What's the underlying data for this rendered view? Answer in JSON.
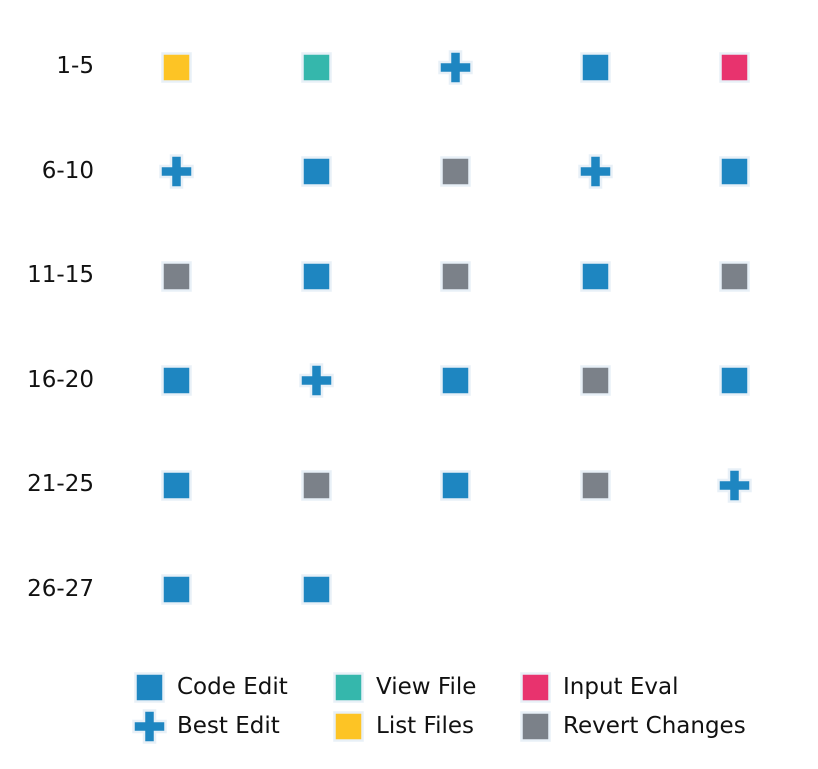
{
  "chart_data": {
    "type": "scatter",
    "description": "Grid timeline of agent actions per step; each row covers five steps, each cell is one action marker",
    "background": "#ffffff",
    "marker_halo": "#e8f0f7",
    "text_color": "#111111",
    "rows": [
      {
        "label": "1-5",
        "actions": [
          "List Files",
          "View File",
          "Best Edit",
          "Code Edit",
          "Input Eval"
        ]
      },
      {
        "label": "6-10",
        "actions": [
          "Best Edit",
          "Code Edit",
          "Revert Changes",
          "Best Edit",
          "Code Edit"
        ]
      },
      {
        "label": "11-15",
        "actions": [
          "Revert Changes",
          "Code Edit",
          "Revert Changes",
          "Code Edit",
          "Revert Changes"
        ]
      },
      {
        "label": "16-20",
        "actions": [
          "Code Edit",
          "Best Edit",
          "Code Edit",
          "Revert Changes",
          "Code Edit"
        ]
      },
      {
        "label": "21-25",
        "actions": [
          "Code Edit",
          "Revert Changes",
          "Code Edit",
          "Revert Changes",
          "Best Edit"
        ]
      },
      {
        "label": "26-27",
        "actions": [
          "Code Edit",
          "Code Edit"
        ]
      }
    ],
    "legend": [
      {
        "label": "Code Edit",
        "marker": "square",
        "color": "#1e86c1"
      },
      {
        "label": "View File",
        "marker": "square",
        "color": "#35b7ac"
      },
      {
        "label": "Input Eval",
        "marker": "square",
        "color": "#e8336e"
      },
      {
        "label": "Best Edit",
        "marker": "plus",
        "color": "#1e86c1"
      },
      {
        "label": "List Files",
        "marker": "square",
        "color": "#fdc425"
      },
      {
        "label": "Revert Changes",
        "marker": "square",
        "color": "#7b8189"
      }
    ],
    "legend_position": "bottom",
    "legend_columns": 3,
    "grid": "off",
    "title": ""
  }
}
